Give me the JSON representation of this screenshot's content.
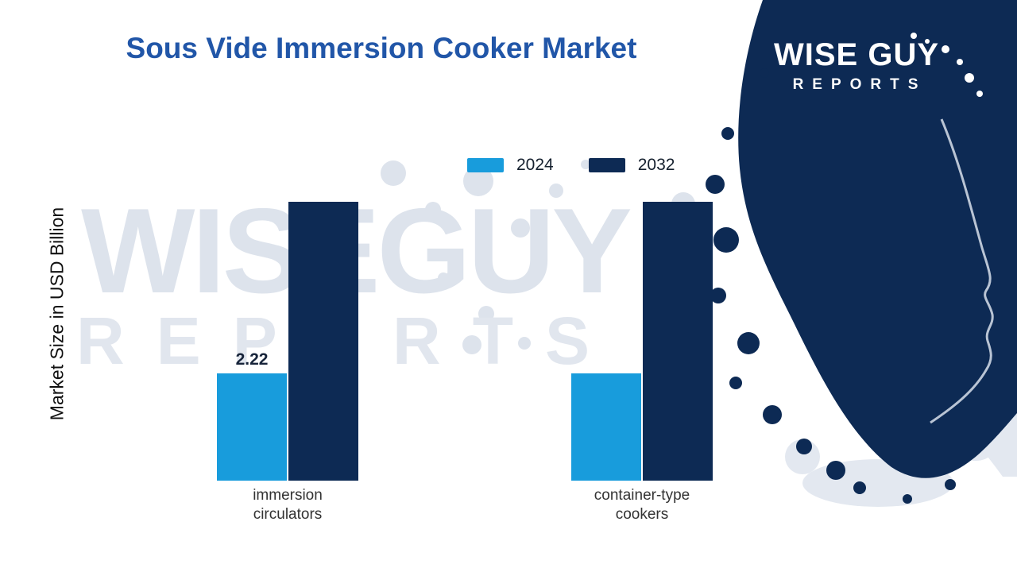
{
  "title": "Sous Vide Immersion Cooker Market",
  "chart_data": {
    "type": "bar",
    "title": "Sous Vide Immersion Cooker Market",
    "xlabel": "",
    "ylabel": "Market Size in USD Billion",
    "categories": [
      "immersion circulators",
      "container-type cookers"
    ],
    "series": [
      {
        "name": "2024",
        "color": "#189cdc",
        "values": [
          2.22,
          2.22
        ]
      },
      {
        "name": "2032",
        "color": "#0d2a54",
        "values": [
          5.77,
          5.77
        ]
      }
    ],
    "value_labels": [
      {
        "series": "2024",
        "category": "immersion circulators",
        "text": "2.22"
      }
    ],
    "ylim": [
      0,
      6
    ],
    "grid": false,
    "legend_position": "top"
  },
  "watermark": {
    "line1": "WISEGUY",
    "line2": "REPORTS"
  },
  "logo": {
    "line1": "WISE GUY",
    "line2": "REPORTS"
  }
}
